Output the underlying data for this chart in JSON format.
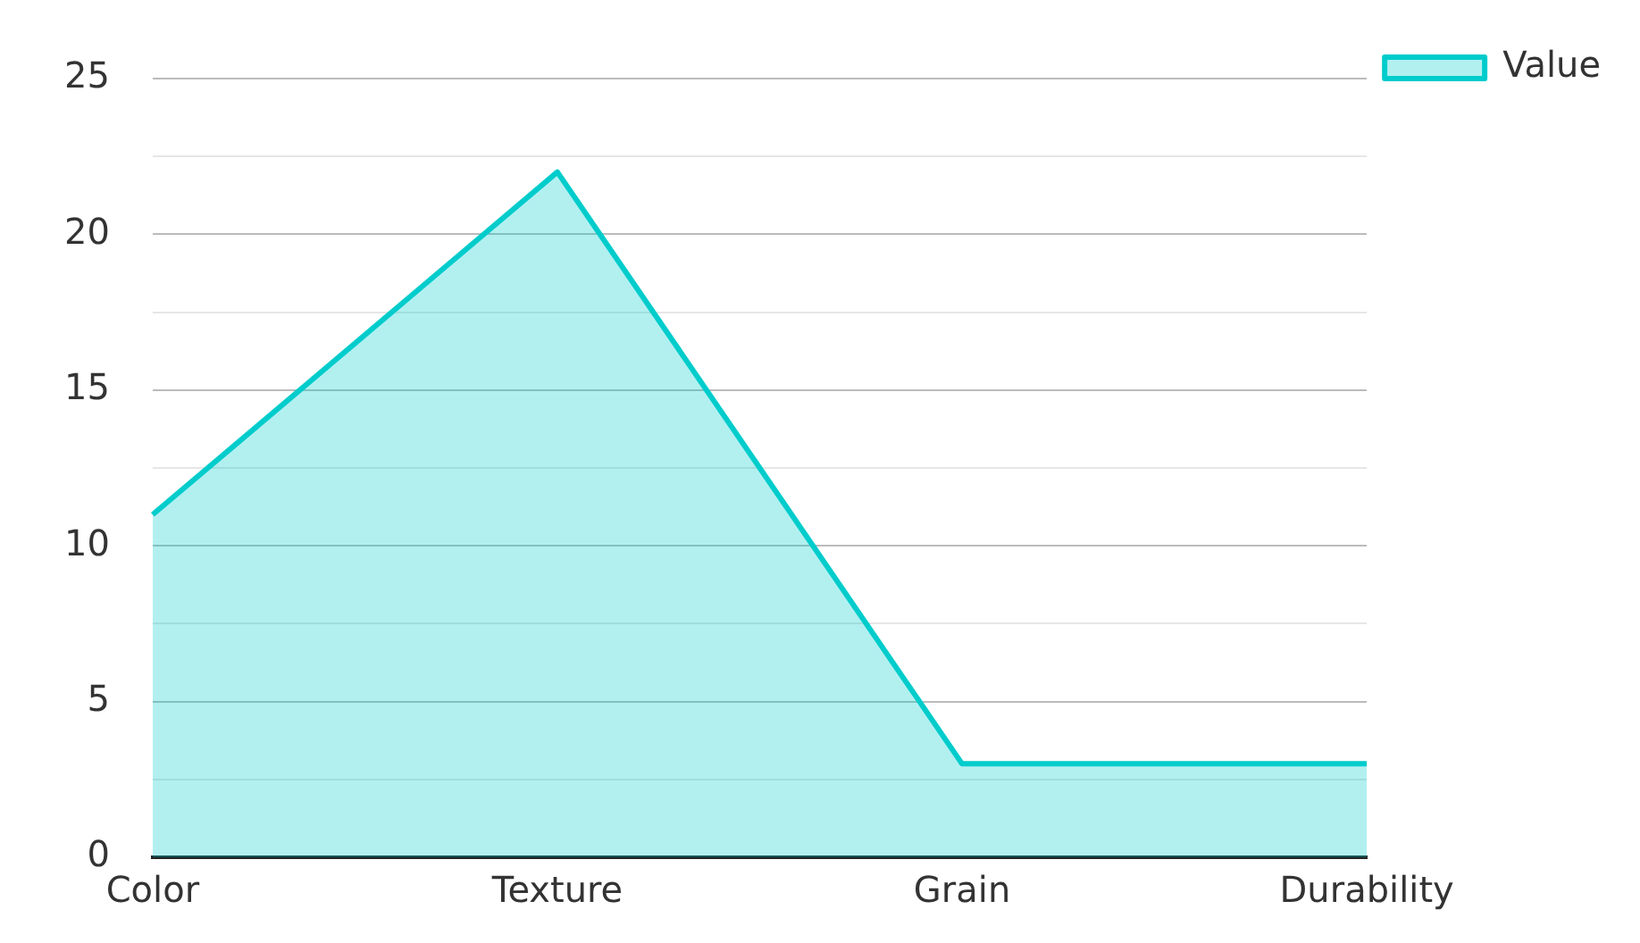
{
  "chart_data": {
    "type": "area",
    "categories": [
      "Color",
      "Texture",
      "Grain",
      "Durability"
    ],
    "series": [
      {
        "name": "Value",
        "color": "#00cccc",
        "values": [
          11,
          22,
          3,
          3
        ]
      }
    ],
    "ylim": [
      0,
      25
    ],
    "yticks": [
      0,
      {
        "value": 2.5,
        "label": null
      },
      5,
      {
        "value": 7.5,
        "label": null
      },
      10,
      {
        "value": 12.5,
        "label": null
      },
      15,
      {
        "value": 17.5,
        "label": null
      },
      20,
      {
        "value": 22.5,
        "label": null
      },
      25
    ],
    "grid": "y",
    "legend": "top right",
    "marker": "none",
    "line_style": "solid"
  }
}
